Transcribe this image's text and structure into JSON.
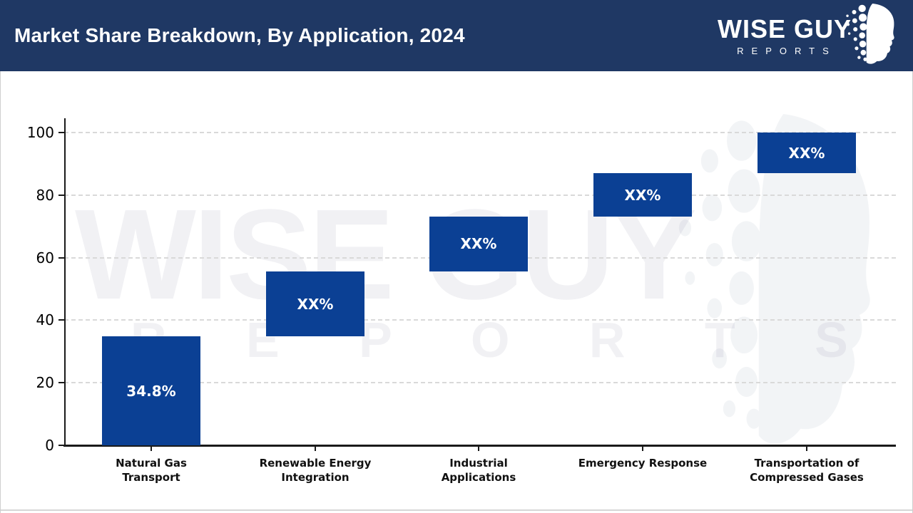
{
  "header": {
    "title": "Market Share Breakdown, By Application, 2024",
    "bg_color": "#1F3864",
    "logo": {
      "line1": "WISE GUY",
      "line2": "REPORTS"
    }
  },
  "watermark": {
    "line1": "WISE GUY",
    "line2": "R E P O R T S"
  },
  "chart_data": {
    "type": "bar",
    "subtype": "waterfall-floating-segments",
    "title": "Market Share Breakdown, By Application, 2024",
    "categories": [
      "Natural Gas Transport",
      "Renewable Energy Integration",
      "Industrial Applications",
      "Emergency Response",
      "Transportation of Compressed Gases"
    ],
    "category_display_lines": [
      [
        "Natural Gas",
        "Transport"
      ],
      [
        "Renewable Energy",
        "Integration"
      ],
      [
        "Industrial",
        "Applications"
      ],
      [
        "Emergency Response"
      ],
      [
        "Transportation of",
        "Compressed Gases"
      ]
    ],
    "segments": [
      {
        "from": 0,
        "to": 34.8
      },
      {
        "from": 34.8,
        "to": 55.6
      },
      {
        "from": 55.6,
        "to": 73.1
      },
      {
        "from": 73.1,
        "to": 87.0
      },
      {
        "from": 87.0,
        "to": 100.0
      }
    ],
    "bar_labels": [
      "34.8%",
      "XX%",
      "XX%",
      "XX%",
      "XX%"
    ],
    "known_values": {
      "Natural Gas Transport": "34.8%"
    },
    "ylim": [
      0,
      104
    ],
    "yticks": [
      0,
      20,
      40,
      60,
      80,
      100
    ],
    "grid": {
      "axis": "y",
      "style": "dashed",
      "color": "#d9d9d9"
    },
    "legend": "none",
    "bar_color": "#0B4094",
    "bar_label_color": "#ffffff",
    "axis_color": "#1a1a1a"
  }
}
